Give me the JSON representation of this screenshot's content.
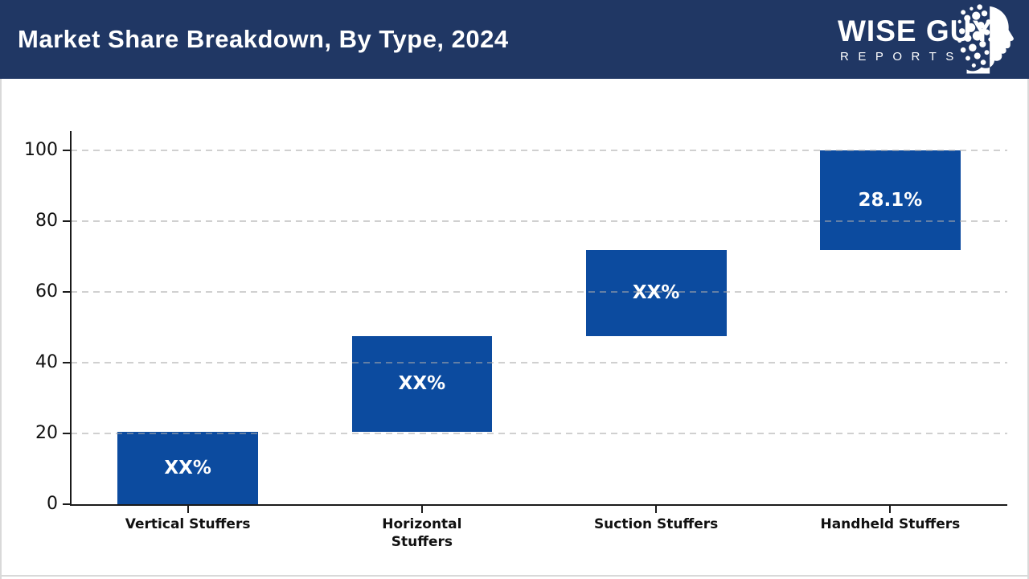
{
  "header": {
    "title": "Market Share Breakdown, By Type, 2024",
    "bg_color": "#203764",
    "logo": {
      "line1": "WISE GUY",
      "line2": "REPORTS",
      "face_icon": "dotted-head-profile"
    }
  },
  "watermark": {
    "line1": "WISE GUY",
    "line2": "REPORTS",
    "face_icon": "dotted-head-profile"
  },
  "chart_data": {
    "type": "bar",
    "subtype": "waterfall",
    "title": "Market Share Breakdown, By Type, 2024",
    "xlabel": "",
    "ylabel": "",
    "categories": [
      "Vertical Stuffers",
      "Horizontal\nStuffers",
      "Suction Stuffers",
      "Handheld Stuffers"
    ],
    "segments": [
      {
        "label": "Vertical Stuffers",
        "start": 0,
        "end": 20.5,
        "value_label": "XX%"
      },
      {
        "label": "Horizontal Stuffers",
        "start": 20.5,
        "end": 47.5,
        "value_label": "XX%"
      },
      {
        "label": "Suction Stuffers",
        "start": 47.5,
        "end": 71.9,
        "value_label": "XX%"
      },
      {
        "label": "Handheld Stuffers",
        "start": 71.9,
        "end": 100,
        "value_label": "28.1%"
      }
    ],
    "yticks": [
      0,
      20,
      40,
      60,
      80,
      100
    ],
    "ylim": [
      0,
      105
    ],
    "bar_color": "#0c4b9f",
    "grid": true,
    "grid_style": "dashed",
    "legend_position": "none"
  }
}
